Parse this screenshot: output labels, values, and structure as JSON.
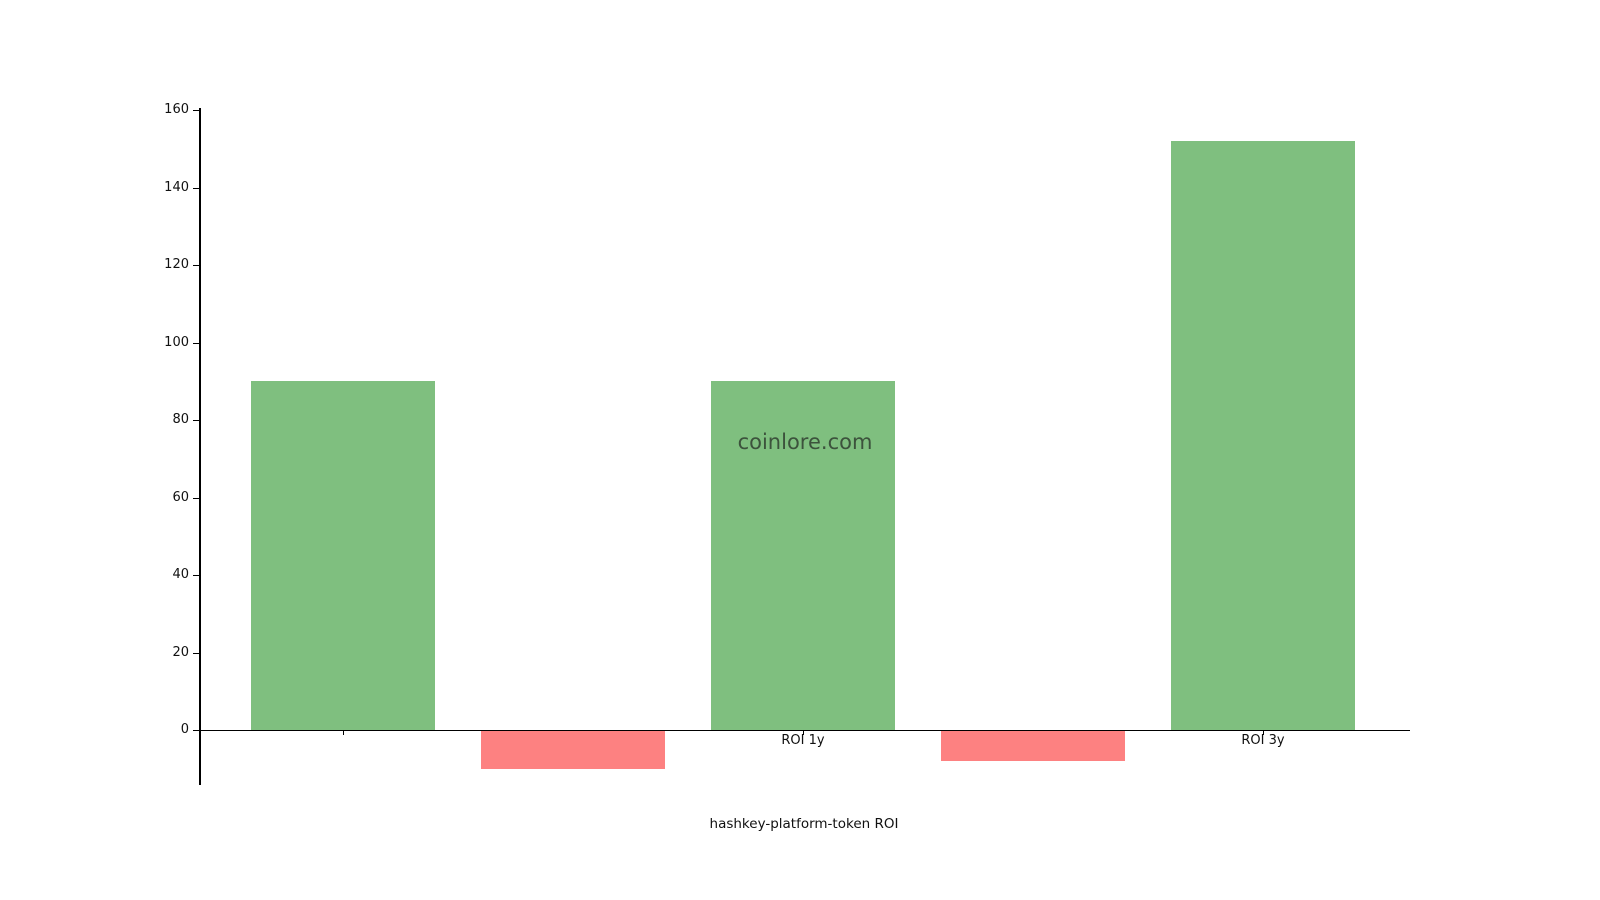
{
  "page": {
    "background_hex": "#ffffff"
  },
  "watermark": {
    "text": "coinlore.com",
    "color_hex": "#3d4a3d"
  },
  "chart_data": {
    "type": "bar",
    "title": "hashkey-platform-token ROI",
    "title_position": "bottom-center",
    "categories": [
      "",
      "",
      "ROI 1y",
      "",
      "ROI 3y"
    ],
    "values": [
      90,
      -10,
      90,
      -8,
      152
    ],
    "bar_colors": [
      "#7fbf7f",
      "#fd8181",
      "#7fbf7f",
      "#fd8181",
      "#7fbf7f"
    ],
    "positive_color_hex": "#7fbf7f",
    "negative_color_hex": "#fd8181",
    "xlabel": "",
    "ylabel": "",
    "y_ticks": [
      0,
      20,
      40,
      60,
      80,
      100,
      120,
      140,
      160
    ],
    "ylim": [
      -15,
      161
    ],
    "grid": false,
    "legend": false,
    "axis_color_hex": "#000000",
    "notes": "ticks visible at categories 1, 3, 5; red bars overlap axis ticks of categories 2 and 4"
  }
}
